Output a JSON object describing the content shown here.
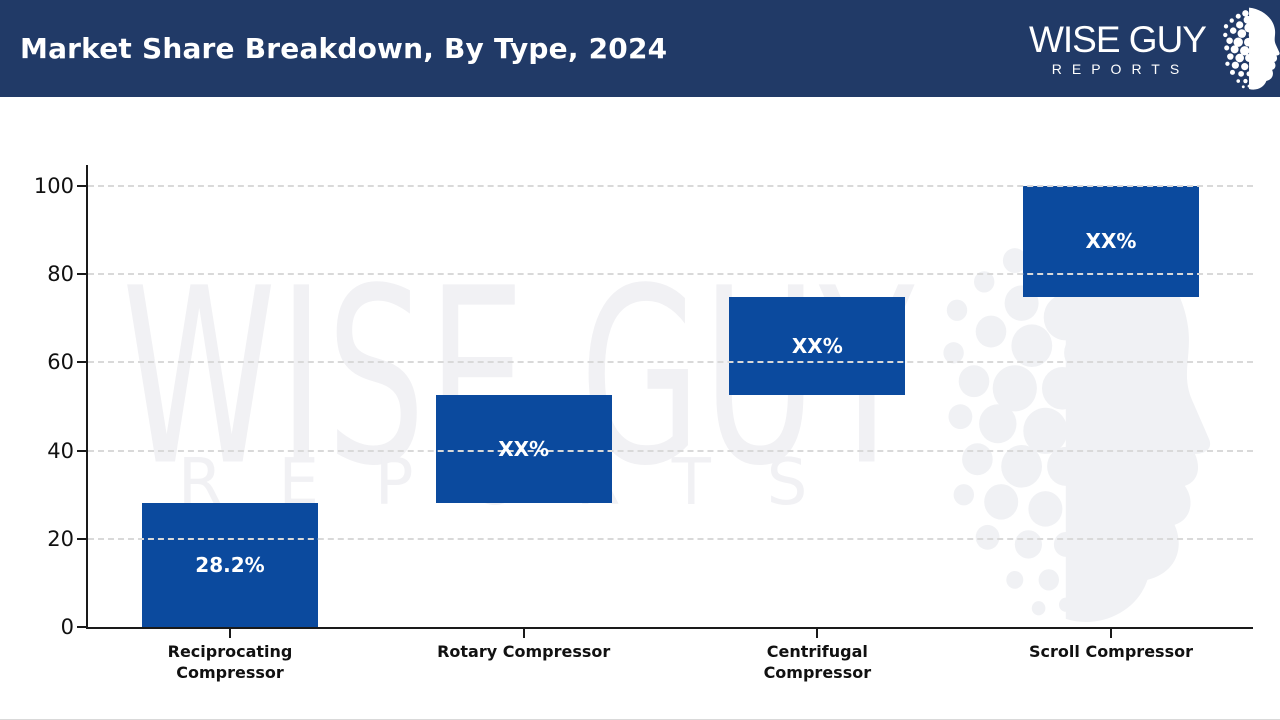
{
  "header": {
    "title": "Market Share Breakdown, By Type, 2024",
    "bg_color": "#213a67",
    "logo": {
      "line1": "WISE GUY",
      "line2": "REPORTS"
    }
  },
  "watermark": {
    "line1": "WISE GUY",
    "line2": "REPORTS"
  },
  "chart_data": {
    "type": "bar",
    "variant": "waterfall",
    "title": "Market Share Breakdown, By Type, 2024",
    "categories": [
      "Reciprocating Compressor",
      "Rotary Compressor",
      "Centrifugal Compressor",
      "Scroll Compressor"
    ],
    "bars": [
      {
        "category": "Reciprocating Compressor",
        "label_lines": [
          "Reciprocating",
          "Compressor"
        ],
        "start": 0,
        "end": 28.2,
        "value": 28.2,
        "value_label": "28.2%"
      },
      {
        "category": "Rotary Compressor",
        "label_lines": [
          "Rotary Compressor"
        ],
        "start": 28.2,
        "end": 52.6,
        "value": 24.4,
        "value_label": "XX%"
      },
      {
        "category": "Centrifugal Compressor",
        "label_lines": [
          "Centrifugal",
          "Compressor"
        ],
        "start": 52.6,
        "end": 74.9,
        "value": 22.3,
        "value_label": "XX%"
      },
      {
        "category": "Scroll Compressor",
        "label_lines": [
          "Scroll Compressor"
        ],
        "start": 74.9,
        "end": 100,
        "value": 25.1,
        "value_label": "XX%"
      }
    ],
    "yticks": [
      0,
      20,
      40,
      60,
      80,
      100
    ],
    "ylim": [
      0,
      105
    ],
    "xlabel": "",
    "ylabel": "",
    "legend": null,
    "grid": {
      "axis": "y",
      "style": "dashed",
      "color": "#d9d9d9",
      "drawn_over_bars": true
    },
    "bar_color": "#0b4a9e",
    "axis_color": "#1a1a1a",
    "background_watermark": "WISE GUY REPORTS"
  }
}
